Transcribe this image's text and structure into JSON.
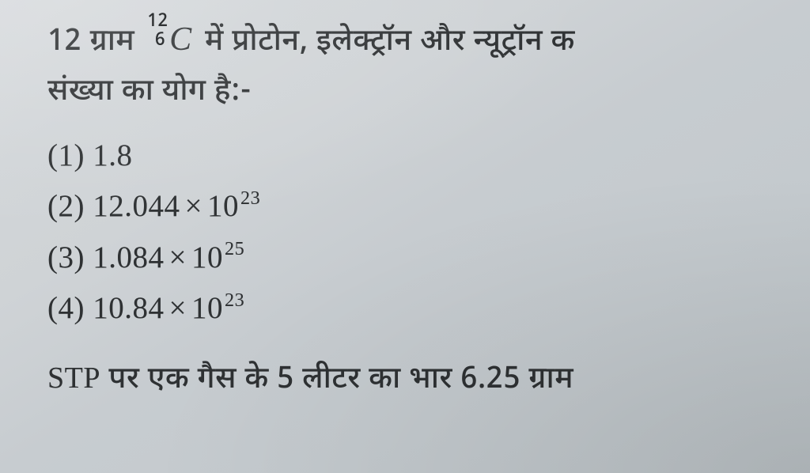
{
  "colors": {
    "background_top_left": "#d7dadd",
    "background_bottom_right": "#bec5c9",
    "text": "#2e3133"
  },
  "typography": {
    "body_fontsize_pt": 29,
    "option_fontsize_pt": 29,
    "weight": 500,
    "devanagari_family": "Noto Sans Devanagari / Mangal",
    "latin_family": "Times New Roman"
  },
  "question": {
    "leading_number": "12",
    "unit_word": "ग्राम",
    "isotope": {
      "mass": "12",
      "atomic": "6",
      "element": "C"
    },
    "line1_tail": "में प्रोटोन, इलेक्ट्रॉन और न्यूट्रॉन क",
    "line2": "संख्या का योग है:-"
  },
  "options": [
    {
      "label": "(1)",
      "value": "1.8",
      "times10": null,
      "exp": null
    },
    {
      "label": "(2)",
      "value": "12.044",
      "times10": "10",
      "exp": "23"
    },
    {
      "label": "(3)",
      "value": "1.084",
      "times10": "10",
      "exp": "25"
    },
    {
      "label": "(4)",
      "value": "10.84",
      "times10": "10",
      "exp": "23"
    }
  ],
  "footer": {
    "prefix_latin": "STP",
    "rest": " पर एक गैस के 5 लीटर का भार 6.25 ग्राम"
  },
  "multiply_sign": "×"
}
